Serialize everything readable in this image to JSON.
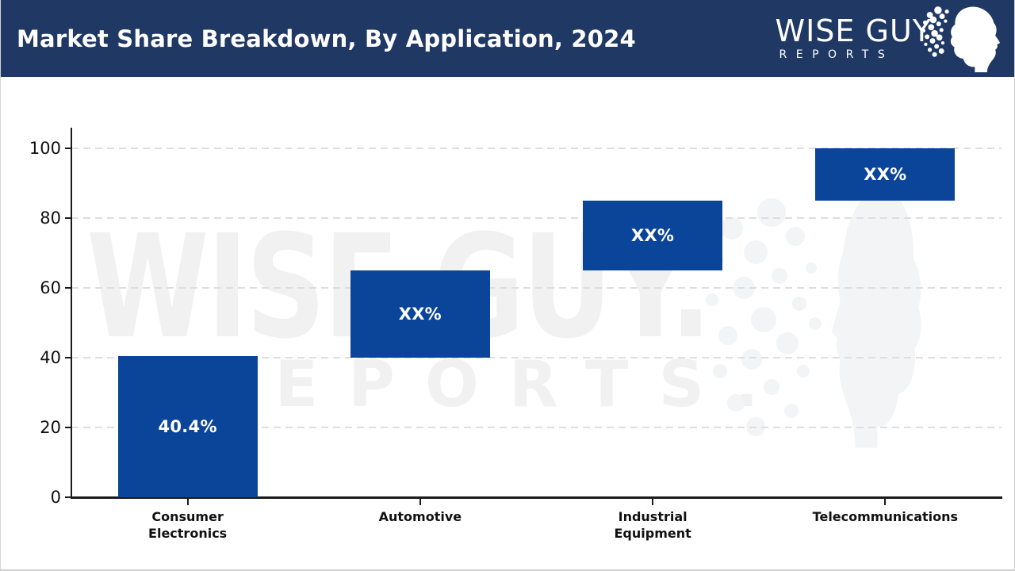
{
  "header": {
    "title": "Market Share Breakdown, By Application, 2024",
    "logo": {
      "line1": "WISE GUY",
      "line2": "REPORTS"
    }
  },
  "watermark": {
    "line1": "WISE GUY.",
    "line2": "REPORTS."
  },
  "colors": {
    "header_bg": "#1f3864",
    "bar_fill": "#0b4599",
    "grid_line": "#dedede",
    "axis_line": "#1a1a1a",
    "watermark_text": "#f1f1f1",
    "watermark_shape": "#f2f4f6"
  },
  "chart_data": {
    "type": "bar",
    "variant": "floating-segment-waterfall",
    "title": "Market Share Breakdown, By Application, 2024",
    "categories": [
      "Consumer\nElectronics",
      "Automotive",
      "Industrial\nEquipment",
      "Telecommunications"
    ],
    "bars": [
      {
        "category": "Consumer Electronics",
        "start": 0,
        "end": 40.4,
        "label": "40.4%"
      },
      {
        "category": "Automotive",
        "start": 40,
        "end": 65,
        "label": "XX%"
      },
      {
        "category": "Industrial Equipment",
        "start": 65,
        "end": 85,
        "label": "XX%"
      },
      {
        "category": "Telecommunications",
        "start": 85,
        "end": 100,
        "label": "XX%"
      }
    ],
    "xlabel": "",
    "ylabel": "",
    "ylim": [
      0,
      100
    ],
    "yticks": [
      0,
      20,
      40,
      60,
      80,
      100
    ],
    "grid": "dashed-horizontal",
    "legend": "none",
    "bar_color": "#0b4599",
    "label_color": "#ffffff"
  }
}
